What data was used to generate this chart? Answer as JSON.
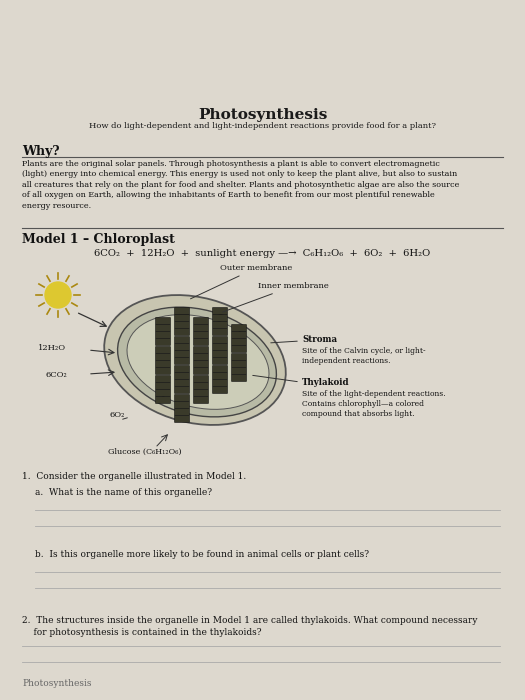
{
  "bg_color": "#ddd8ce",
  "title": "Photosynthesis",
  "subtitle": "How do light-dependent and light-independent reactions provide food for a plant?",
  "why_heading": "Why?",
  "why_text": "Plants are the original solar panels. Through photosynthesis a plant is able to convert electromagnetic\n(light) energy into chemical energy. This energy is used not only to keep the plant alive, but also to sustain\nall creatures that rely on the plant for food and shelter. Plants and photosynthetic algae are also the source\nof all oxygen on Earth, allowing the inhabitants of Earth to benefit from our most plentiful renewable\nenergy resource.",
  "model_heading": "Model 1 – Chloroplast",
  "equation": "6CO₂  +  12H₂O  +  sunlight energy —→  C₆H₁₂O₆  +  6O₂  +  6H₂O",
  "label_outer": "Outer membrane",
  "label_inner": "Inner membrane",
  "label_stroma": "Stroma",
  "label_stroma2": "Site of the Calvin cycle, or light-\nindependent reactions.",
  "label_thylakoid": "Thylakoid",
  "label_thylakoid2": "Site of the light-dependent reactions.\nContains chlorophyll—a colored\ncompound that absorbs light.",
  "label_h2o": "12H₂O",
  "label_co2": "6CO₂",
  "label_o2": "6O₂",
  "label_glucose": "Glucose (C₆H₁₂O₆)",
  "q1": "1.  Consider the organelle illustrated in Model 1.",
  "q1a": "a.  What is the name of this organelle?",
  "q1b": "b.  Is this organelle more likely to be found in animal cells or plant cells?",
  "q2": "2.  The structures inside the organelle in Model 1 are called thylakoids. What compound necessary\n    for photosynthesis is contained in the thylakoids?",
  "footer": "Photosynthesis"
}
